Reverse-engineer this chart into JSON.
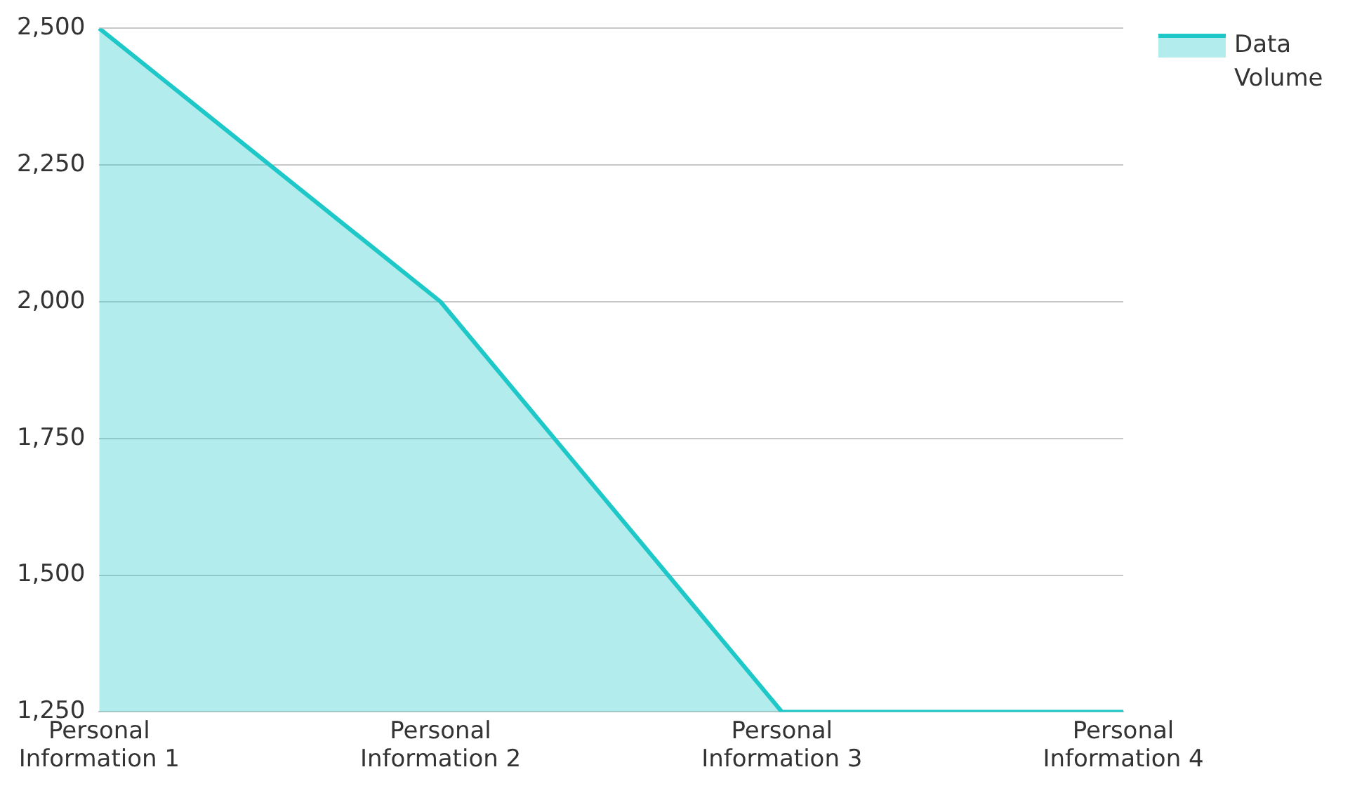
{
  "chart_data": {
    "type": "area",
    "categories": [
      "Personal Information 1",
      "Personal Information 2",
      "Personal Information 3",
      "Personal Information 4"
    ],
    "series": [
      {
        "name": "Data Volume",
        "color": "#1ec8c8",
        "values": [
          2500,
          2000,
          1250,
          1250
        ]
      }
    ],
    "ylim": [
      1250,
      2500
    ],
    "yticks": [
      {
        "value": 1250,
        "label": "1,250"
      },
      {
        "value": 1500,
        "label": "1,500"
      },
      {
        "value": 1750,
        "label": "1,750"
      },
      {
        "value": 2000,
        "label": "2,000"
      },
      {
        "value": 2250,
        "label": "2,250"
      },
      {
        "value": 2500,
        "label": "2,500"
      }
    ],
    "grid": "y",
    "legend": "top right"
  }
}
